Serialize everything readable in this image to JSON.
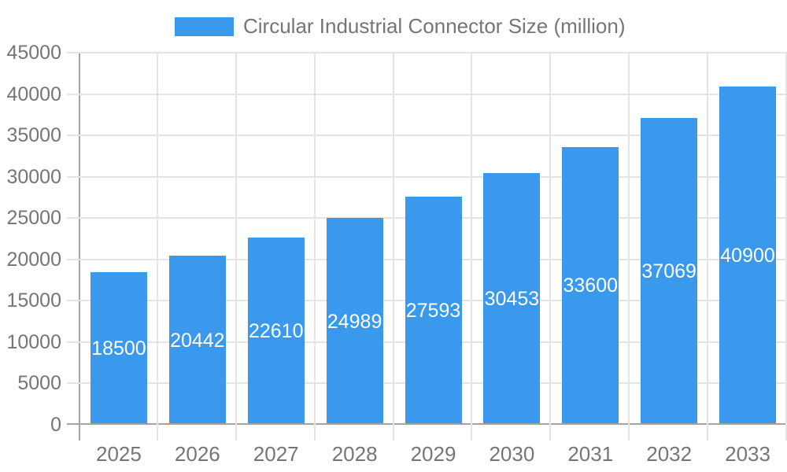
{
  "chart_data": {
    "type": "bar",
    "title": "Circular Industrial Connector Size (million)",
    "categories": [
      "2025",
      "2026",
      "2027",
      "2028",
      "2029",
      "2030",
      "2031",
      "2032",
      "2033"
    ],
    "values": [
      18500,
      20442,
      22610,
      24989,
      27593,
      30453,
      33600,
      37069,
      40900
    ],
    "xlabel": "",
    "ylabel": "",
    "ylim": [
      0,
      45000
    ],
    "ytick_step": 5000,
    "grid": true,
    "legend_position": "top-center",
    "bar_labels_inside": true,
    "colors": {
      "bar": "#3a99ec",
      "bar_label_text": "#ffffff",
      "axis_line": "#a3a3a3",
      "grid_line": "#e4e4e4",
      "tick_text": "#757575",
      "legend_text": "#757575",
      "background": "#ffffff"
    }
  }
}
